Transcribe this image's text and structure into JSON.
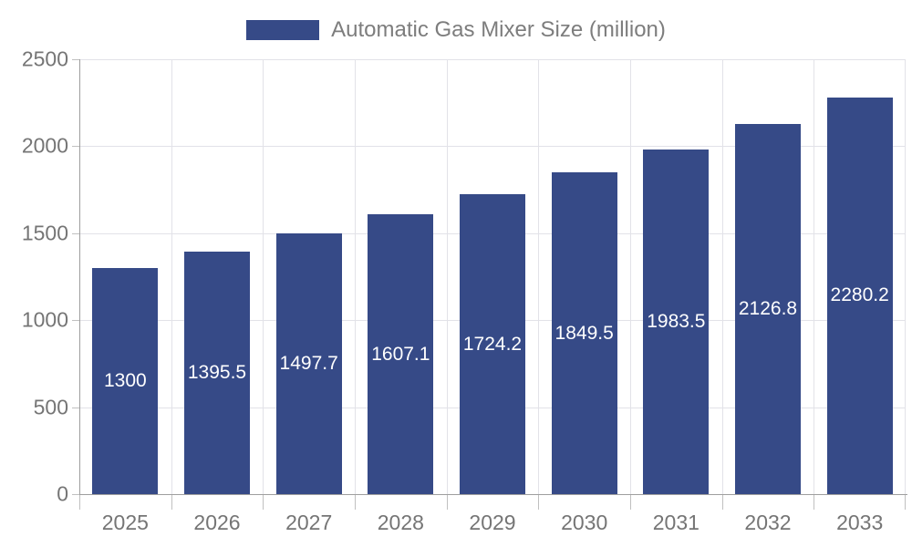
{
  "legend": {
    "label": "Automatic Gas Mixer Size (million)"
  },
  "colors": {
    "bar": "#364a87",
    "bar_label": "#ffffff",
    "axis_line": "#9e9e9e",
    "grid_line": "#e2e2e8",
    "tick": "#c0c0c0",
    "axis_label": "#757575",
    "legend_text": "#7d7d7d",
    "background": "#ffffff"
  },
  "chart_data": {
    "type": "bar",
    "title": "",
    "xlabel": "",
    "ylabel": "",
    "categories": [
      "2025",
      "2026",
      "2027",
      "2028",
      "2029",
      "2030",
      "2031",
      "2032",
      "2033"
    ],
    "series": [
      {
        "name": "Automatic Gas Mixer Size (million)",
        "values": [
          1300,
          1395.5,
          1497.7,
          1607.1,
          1724.2,
          1849.5,
          1983.5,
          2126.8,
          2280.2
        ]
      }
    ],
    "bar_labels": [
      "1300",
      "1395.5",
      "1497.7",
      "1607.1",
      "1724.2",
      "1849.5",
      "1983.5",
      "2126.8",
      "2280.2"
    ],
    "ylim": [
      0,
      2500
    ],
    "yticks": [
      0,
      500,
      1000,
      1500,
      2000,
      2500
    ],
    "grid": true,
    "legend_position": "top",
    "bar_label_position": "inside-center"
  }
}
